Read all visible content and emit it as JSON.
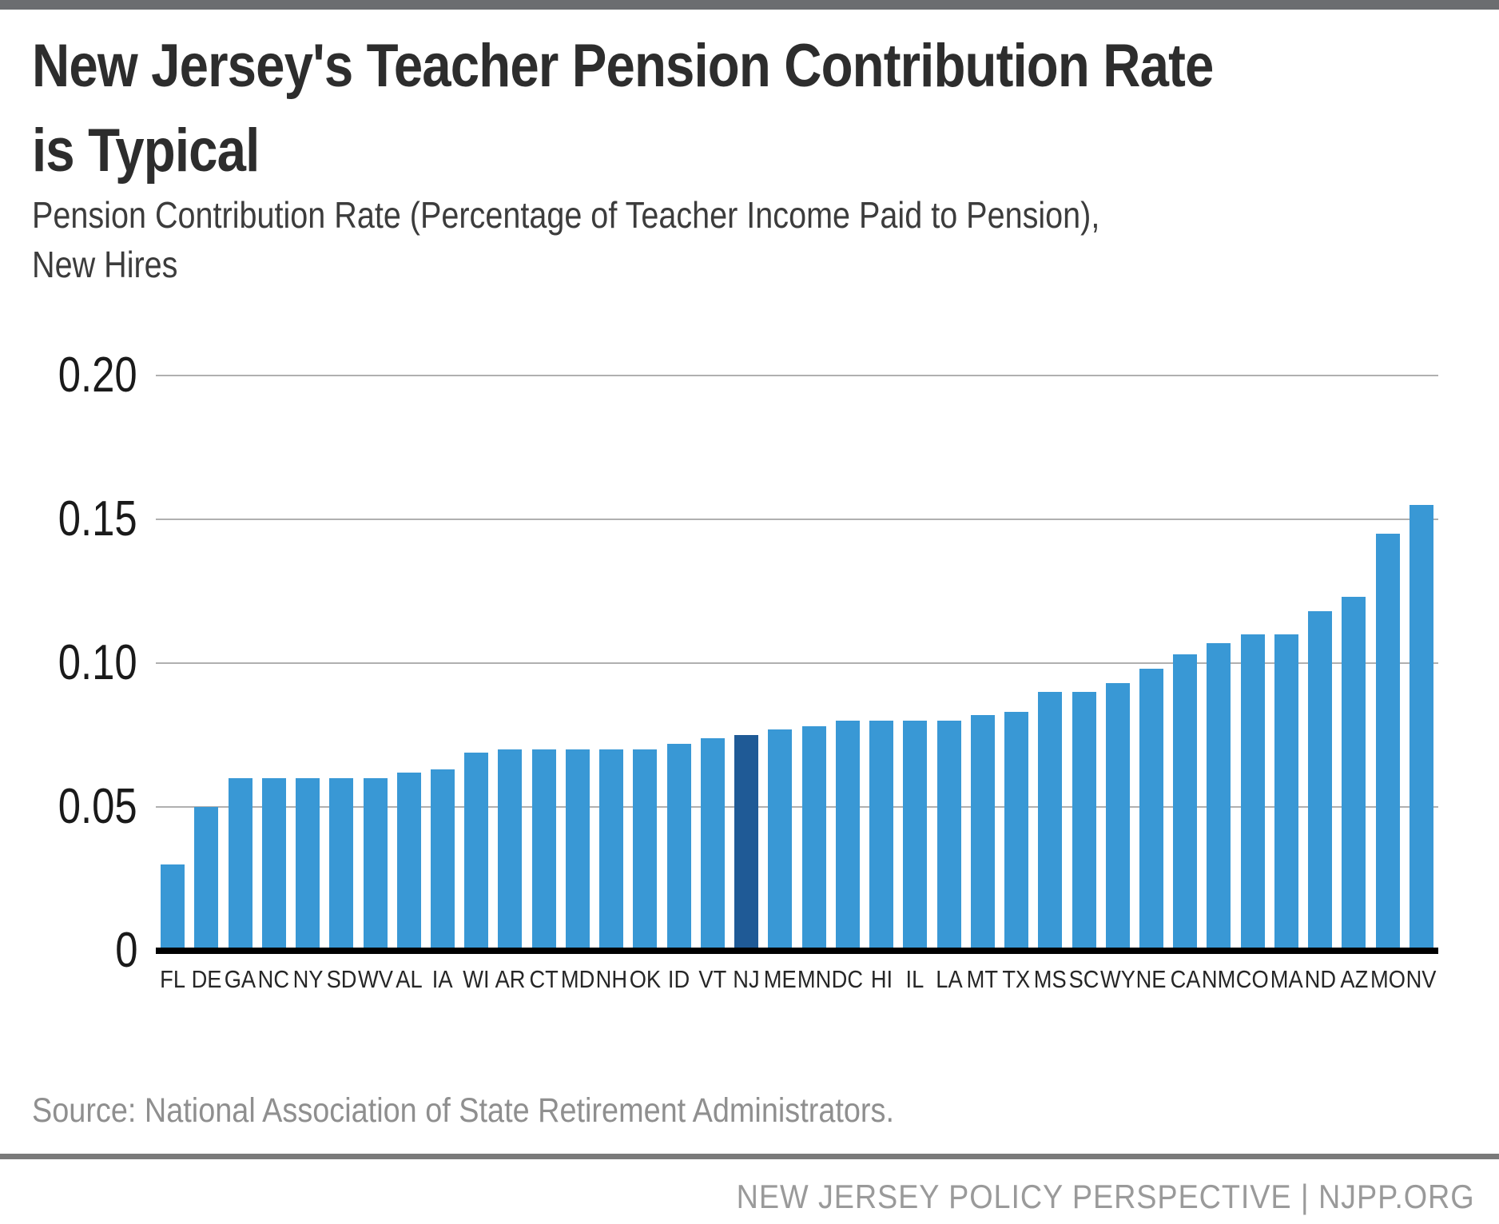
{
  "page": {
    "title_line1": "New Jersey's Teacher Pension Contribution Rate",
    "title_line2": "is Typical",
    "subtitle_line1": "Pension Contribution Rate (Percentage of Teacher Income Paid to Pension),",
    "subtitle_line2": "New Hires",
    "source": "Source: National Association of State Retirement Administrators.",
    "footer": "NEW JERSEY POLICY PERSPECTIVE | NJPP.ORG"
  },
  "colors": {
    "bar_default": "#3998d5",
    "bar_highlight": "#1f5a96",
    "gridline": "#b0b0b0",
    "axis": "#000000",
    "top_bar": "#6b6d70",
    "divider": "#7a7a7a"
  },
  "chart_data": {
    "type": "bar",
    "title": "New Jersey's Teacher Pension Contribution Rate is Typical",
    "subtitle": "Pension Contribution Rate (Percentage of Teacher Income Paid to Pension), New Hires",
    "xlabel": "",
    "ylabel": "",
    "ylim": [
      0,
      0.2
    ],
    "grid": true,
    "legend": false,
    "y_ticks": [
      {
        "label": "0",
        "value": 0
      },
      {
        "label": "0.05",
        "value": 0.05
      },
      {
        "label": "0.10",
        "value": 0.1
      },
      {
        "label": "0.15",
        "value": 0.15
      },
      {
        "label": "0.20",
        "value": 0.2
      }
    ],
    "highlight_category": "NJ",
    "highlight_index": 17,
    "categories": [
      "FL",
      "DE",
      "GA",
      "NC",
      "NY",
      "SD",
      "WV",
      "AL",
      "IA",
      "WI",
      "AR",
      "CT",
      "MD",
      "NH",
      "OK",
      "ID",
      "VT",
      "NJ",
      "ME",
      "MN",
      "DC",
      "HI",
      "IL",
      "LA",
      "MT",
      "TX",
      "MS",
      "SC",
      "WY",
      "NE",
      "CA",
      "NM",
      "CO",
      "MA",
      "ND",
      "AZ",
      "MO",
      "NV"
    ],
    "values": [
      0.03,
      0.05,
      0.06,
      0.06,
      0.06,
      0.06,
      0.06,
      0.062,
      0.063,
      0.069,
      0.07,
      0.07,
      0.07,
      0.07,
      0.07,
      0.072,
      0.074,
      0.075,
      0.077,
      0.078,
      0.08,
      0.08,
      0.08,
      0.08,
      0.082,
      0.083,
      0.09,
      0.09,
      0.093,
      0.098,
      0.103,
      0.107,
      0.11,
      0.11,
      0.118,
      0.123,
      0.145,
      0.155
    ]
  }
}
